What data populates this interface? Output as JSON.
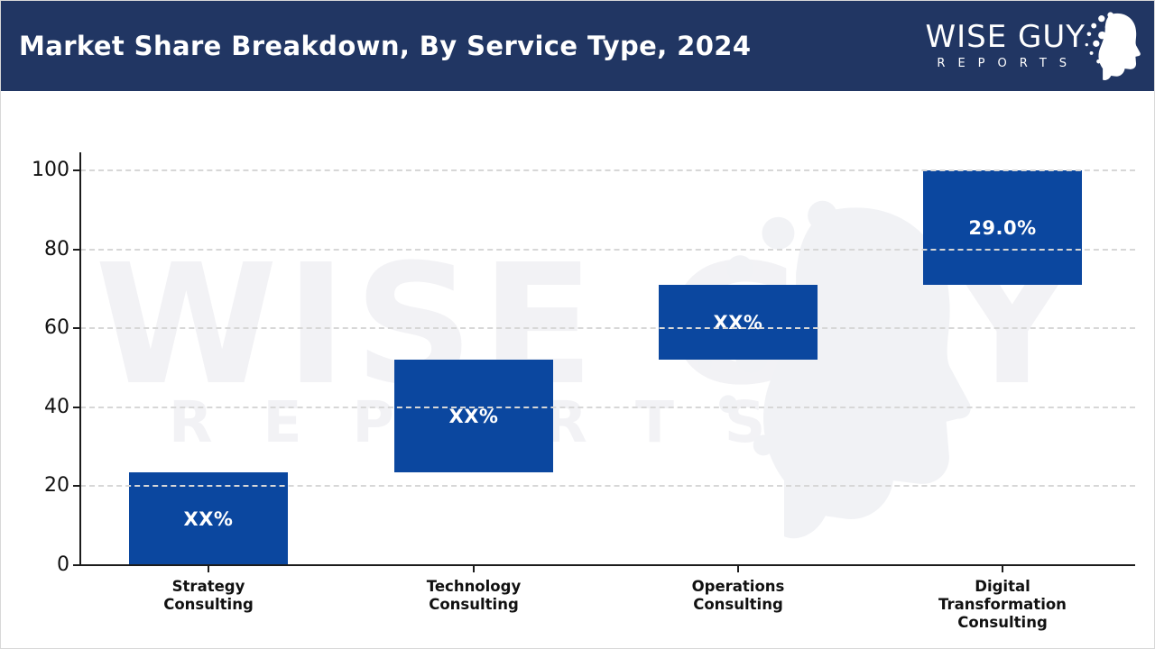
{
  "header": {
    "title": "Market Share Breakdown, By Service Type, 2024",
    "bg_color": "#213663",
    "logo": {
      "wordmark": "WISE GUY",
      "subtext": "REPORTS"
    }
  },
  "watermark": {
    "line1": "WISE GUY",
    "line2": "REPORTS"
  },
  "chart_data": {
    "type": "bar",
    "subtype": "waterfall-floating-bars",
    "title": "Market Share Breakdown, By Service Type, 2024",
    "unit": "percent",
    "categories": [
      [
        "Strategy",
        "Consulting"
      ],
      [
        "Technology",
        "Consulting"
      ],
      [
        "Operations",
        "Consulting"
      ],
      [
        "Digital",
        "Transformation",
        "Consulting"
      ]
    ],
    "series": [
      {
        "name": "Strategy Consulting",
        "start": 0,
        "end": 23.5,
        "value": 23.5,
        "label": "XX%"
      },
      {
        "name": "Technology Consulting",
        "start": 23.5,
        "end": 52,
        "value": 28.5,
        "label": "XX%"
      },
      {
        "name": "Operations Consulting",
        "start": 52,
        "end": 71,
        "value": 19,
        "label": "XX%"
      },
      {
        "name": "Digital Transformation Consulting",
        "start": 71,
        "end": 100,
        "value": 29,
        "label": "29.0%"
      }
    ],
    "ylim": [
      0,
      100
    ],
    "yticks": [
      0,
      20,
      40,
      60,
      80,
      100
    ],
    "grid": "horizontal-dashed-over-bars",
    "legend": "none",
    "bar_color": "#0b479f",
    "bar_label_color": "#ffffff",
    "grid_color": "#d7d7d7",
    "axis_color": "#1c1c1c"
  }
}
